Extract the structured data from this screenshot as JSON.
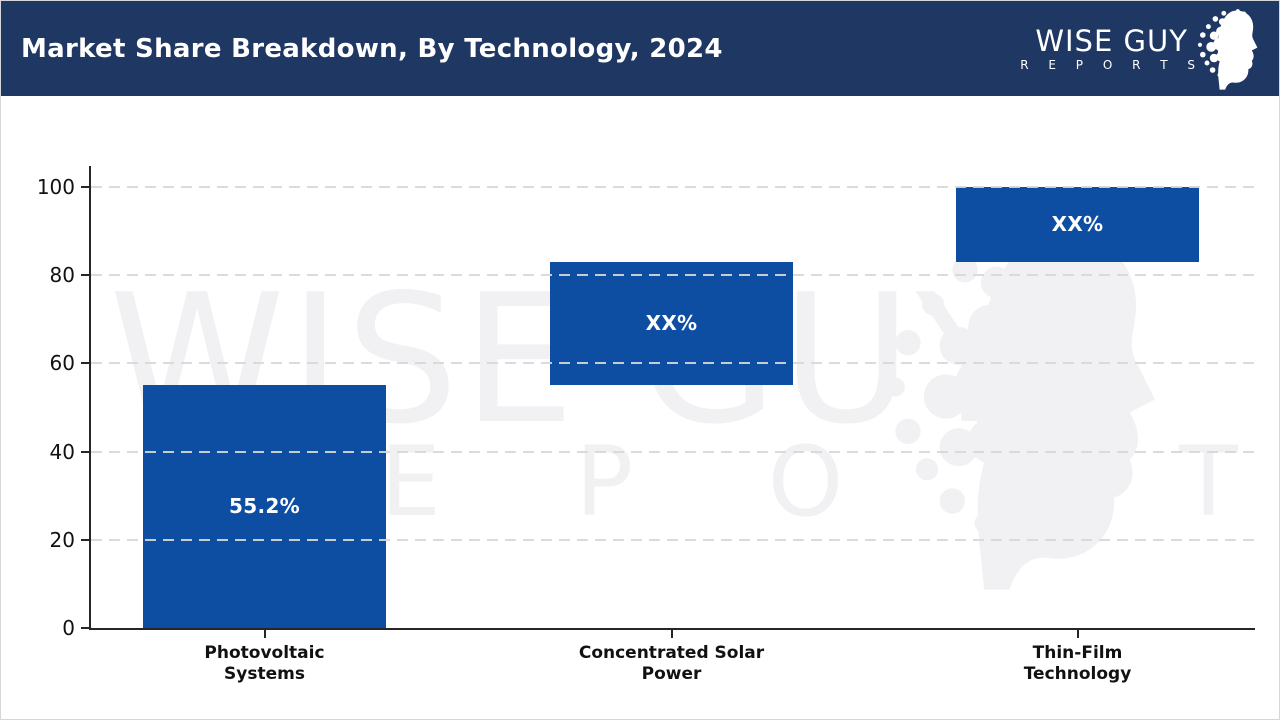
{
  "header": {
    "title": "Market Share Breakdown, By Technology, 2024",
    "logo": {
      "line1": "WISE GUY",
      "line2": "R E P O R T S"
    }
  },
  "watermark": {
    "line1": "WISE GUY",
    "line2": "R E P O R T S"
  },
  "chart_data": {
    "type": "bar",
    "subtype": "waterfall",
    "title": "Market Share Breakdown, By Technology, 2024",
    "categories": [
      "Photovoltaic Systems",
      "Concentrated Solar Power",
      "Thin-Film Technology"
    ],
    "category_lines": [
      [
        "Photovoltaic",
        "Systems"
      ],
      [
        "Concentrated Solar",
        "Power"
      ],
      [
        "Thin-Film",
        "Technology"
      ]
    ],
    "values": [
      55.2,
      27.8,
      17.0
    ],
    "value_labels": [
      "55.2%",
      "XX%",
      "XX%"
    ],
    "segments": [
      {
        "start": 0,
        "end": 55.2
      },
      {
        "start": 55.2,
        "end": 83.0
      },
      {
        "start": 83.0,
        "end": 100.0
      }
    ],
    "xlabel": "",
    "ylabel": "",
    "ylim": [
      0,
      100
    ],
    "yticks": [
      0,
      20,
      40,
      60,
      80,
      100
    ],
    "grid": "horizontal-dashed",
    "legend": "none"
  },
  "colors": {
    "header_bg": "#1f3763",
    "bar": "#0d4da2",
    "bar_label": "#ffffff",
    "grid": "#d8d8d8",
    "axis": "#262626",
    "watermark": "#f1f1f3"
  }
}
